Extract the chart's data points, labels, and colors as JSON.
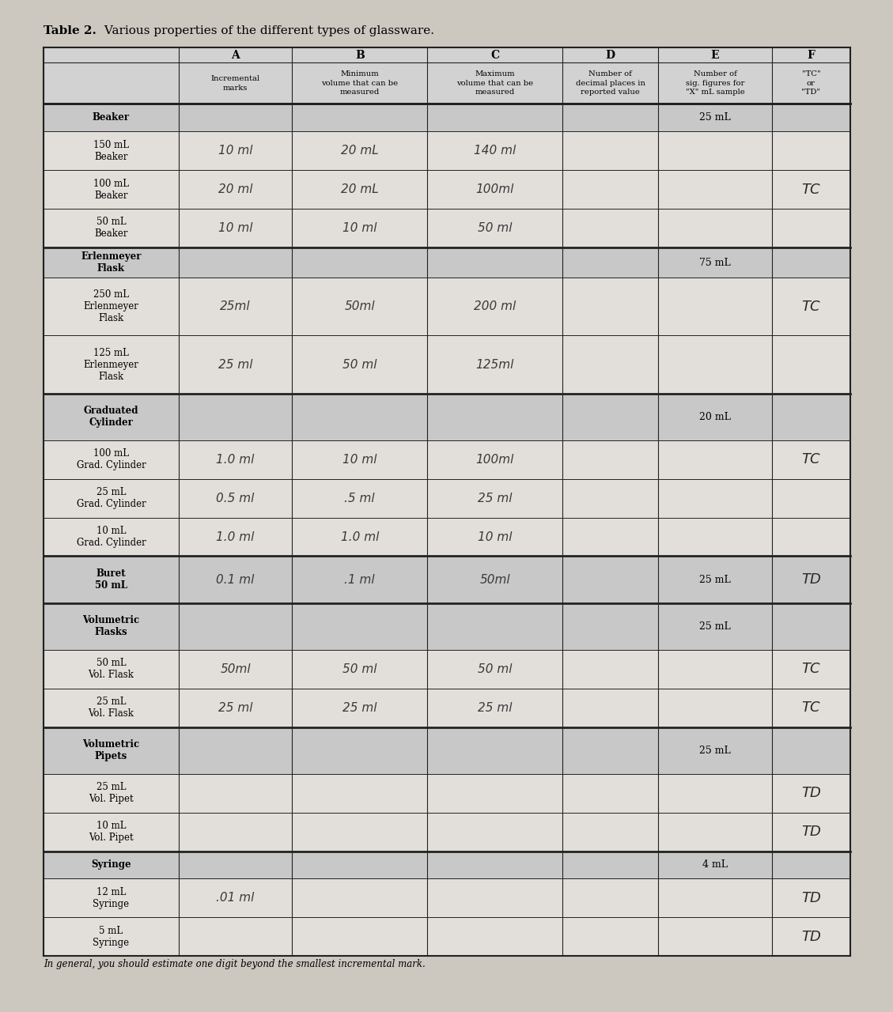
{
  "title_bold": "Table 2.",
  "title_rest": " Various properties of the different types of glassware.",
  "footer": "In general, you should estimate one digit beyond the smallest incremental mark.",
  "col_headers": [
    "A",
    "B",
    "C",
    "D",
    "E",
    "F"
  ],
  "col_subheaders": [
    "Incremental\nmarks",
    "Minimum\nvolume that can be\nmeasured",
    "Maximum\nvolume that can be\nmeasured",
    "Number of\ndecimal places in\nreported value",
    "Number of\nsig. figures for\n\"X\" mL sample",
    "\"TC\"\nor\n\"TD\""
  ],
  "rows": [
    {
      "label": "Beaker",
      "bold": true,
      "A": "",
      "B": "",
      "C": "",
      "D": "",
      "E": "25 mL",
      "F": ""
    },
    {
      "label": "150 mL\nBeaker",
      "bold": false,
      "A": "10 ml",
      "B": "20 mL",
      "C": "140 ml",
      "D": "",
      "E": "",
      "F": ""
    },
    {
      "label": "100 mL\nBeaker",
      "bold": false,
      "A": "20 ml",
      "B": "20 mL",
      "C": "100ml",
      "D": "",
      "E": "",
      "F": "TC"
    },
    {
      "label": "50 mL\nBeaker",
      "bold": false,
      "A": "10 ml",
      "B": "10 ml",
      "C": "50 ml",
      "D": "",
      "E": "",
      "F": ""
    },
    {
      "label": "Erlenmeyer\nFlask",
      "bold": true,
      "A": "",
      "B": "",
      "C": "",
      "D": "",
      "E": "75 mL",
      "F": ""
    },
    {
      "label": "250 mL\nErlenmeyer\nFlask",
      "bold": false,
      "A": "25ml",
      "B": "50ml",
      "C": "200 ml",
      "D": "",
      "E": "",
      "F": "TC"
    },
    {
      "label": "125 mL\nErlenmeyer\nFlask",
      "bold": false,
      "A": "25 ml",
      "B": "50 ml",
      "C": "125ml",
      "D": "",
      "E": "",
      "F": ""
    },
    {
      "label": "Graduated\nCylinder",
      "bold": true,
      "A": "",
      "B": "",
      "C": "",
      "D": "",
      "E": "20 mL",
      "F": ""
    },
    {
      "label": "100 mL\nGrad. Cylinder",
      "bold": false,
      "A": "1.0 ml",
      "B": "10 ml",
      "C": "100ml",
      "D": "",
      "E": "",
      "F": "TC"
    },
    {
      "label": "25 mL\nGrad. Cylinder",
      "bold": false,
      "A": "0.5 ml",
      "B": ".5 ml",
      "C": "25 ml",
      "D": "",
      "E": "",
      "F": ""
    },
    {
      "label": "10 mL\nGrad. Cylinder",
      "bold": false,
      "A": "1.0 ml",
      "B": "1.0 ml",
      "C": "10 ml",
      "D": "",
      "E": "",
      "F": ""
    },
    {
      "label": "Buret\n50 mL",
      "bold": true,
      "A": "0.1 ml",
      "B": ".1 ml",
      "C": "50ml",
      "D": "",
      "E": "25 mL",
      "F": "TD"
    },
    {
      "label": "Volumetric\nFlasks",
      "bold": true,
      "A": "",
      "B": "",
      "C": "",
      "D": "",
      "E": "25 mL",
      "F": ""
    },
    {
      "label": "50 mL\nVol. Flask",
      "bold": false,
      "A": "50ml",
      "B": "50 ml",
      "C": "50 ml",
      "D": "",
      "E": "",
      "F": "TC"
    },
    {
      "label": "25 mL\nVol. Flask",
      "bold": false,
      "A": "25 ml",
      "B": "25 ml",
      "C": "25 ml",
      "D": "",
      "E": "",
      "F": "TC"
    },
    {
      "label": "Volumetric\nPipets",
      "bold": true,
      "A": "",
      "B": "",
      "C": "",
      "D": "",
      "E": "25 mL",
      "F": ""
    },
    {
      "label": "25 mL\nVol. Pipet",
      "bold": false,
      "A": "",
      "B": "",
      "C": "",
      "D": "",
      "E": "",
      "F": "TD"
    },
    {
      "label": "10 mL\nVol. Pipet",
      "bold": false,
      "A": "",
      "B": "",
      "C": "",
      "D": "",
      "E": "",
      "F": "TD"
    },
    {
      "label": "Syringe",
      "bold": true,
      "A": "",
      "B": "",
      "C": "",
      "D": "",
      "E": "4 mL",
      "F": ""
    },
    {
      "label": "12 mL\nSyringe",
      "bold": false,
      "A": ".01 ml",
      "B": "",
      "C": "",
      "D": "",
      "E": "",
      "F": "TD"
    },
    {
      "label": "5 mL\nSyringe",
      "bold": false,
      "A": "",
      "B": "",
      "C": "",
      "D": "",
      "E": "",
      "F": "TD"
    }
  ],
  "thick_before": [
    0,
    4,
    7,
    11,
    12,
    15,
    18
  ],
  "bg_header": "#d2d2d2",
  "bg_category": "#c8c8c8",
  "bg_data": "#e8e6e4",
  "bg_page": "#d8d5d0"
}
